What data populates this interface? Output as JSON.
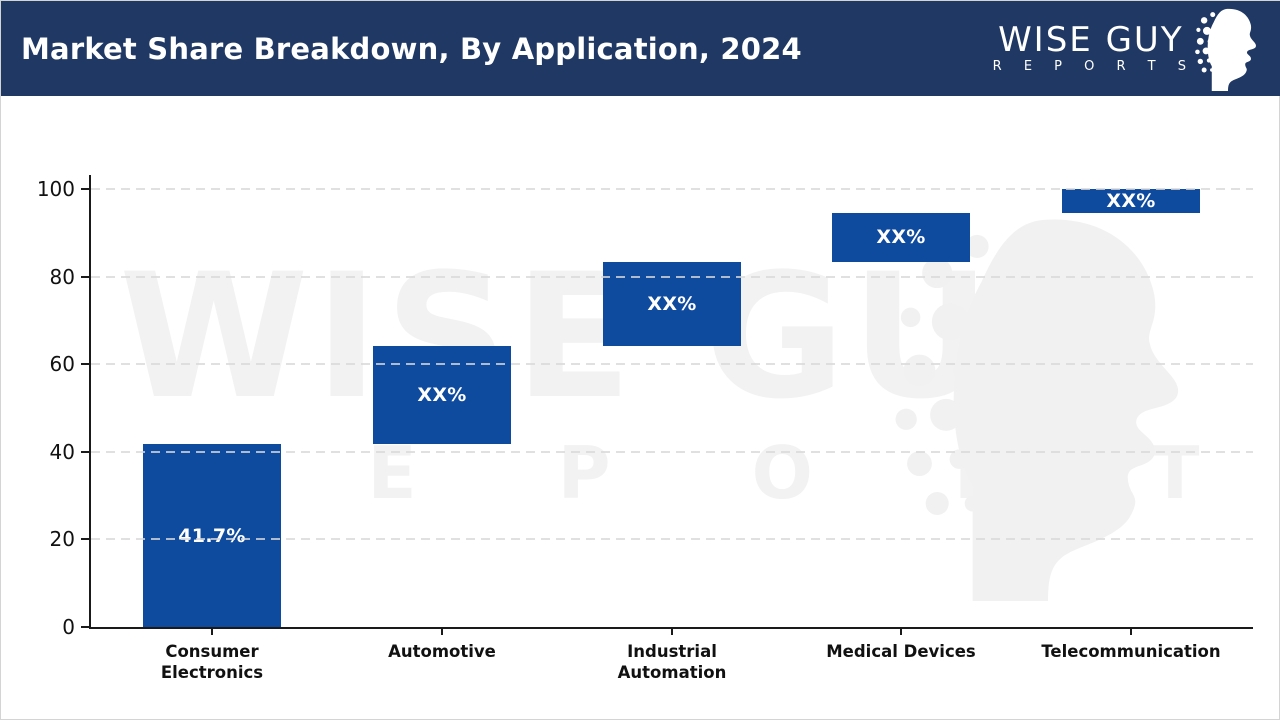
{
  "header": {
    "title": "Market Share Breakdown, By Application, 2024",
    "logo": {
      "line1": "WISE GUY",
      "line2": "R E P O R T S"
    }
  },
  "watermark": {
    "line1": "WISE GUY",
    "line2": "R E P O R T S"
  },
  "colors": {
    "header_bg": "#203864",
    "bar": "#0e4a9d",
    "axis": "#1a1a1a",
    "gridline": "#d9d9d9",
    "bar_label_text": "#ffffff",
    "watermark": "#f2f2f2"
  },
  "chart_data": {
    "type": "bar",
    "subtype": "waterfall",
    "title": "Market Share Breakdown, By Application, 2024",
    "categories": [
      "Consumer Electronics",
      "Automotive",
      "Industrial Automation",
      "Medical Devices",
      "Telecommunication"
    ],
    "category_lines": [
      [
        "Consumer",
        "Electronics"
      ],
      [
        "Automotive"
      ],
      [
        "Industrial",
        "Automation"
      ],
      [
        "Medical Devices"
      ],
      [
        "Telecommunication"
      ]
    ],
    "segments": [
      {
        "category": "Consumer Electronics",
        "start": 0,
        "end": 41.7,
        "value": 41.7,
        "label": "41.7%"
      },
      {
        "category": "Automotive",
        "start": 41.7,
        "end": 64.2,
        "value": 22.5,
        "label": "XX%"
      },
      {
        "category": "Industrial Automation",
        "start": 64.2,
        "end": 83.4,
        "value": 19.2,
        "label": "XX%"
      },
      {
        "category": "Medical Devices",
        "start": 83.4,
        "end": 94.6,
        "value": 11.2,
        "label": "XX%"
      },
      {
        "category": "Telecommunication",
        "start": 94.6,
        "end": 100,
        "value": 5.4,
        "label": "XX%"
      }
    ],
    "xlabel": "",
    "ylabel": "",
    "ylim": [
      0,
      100
    ],
    "yticks": [
      0,
      20,
      40,
      60,
      80,
      100
    ],
    "grid": "horizontal-dashed",
    "legend": "none"
  }
}
